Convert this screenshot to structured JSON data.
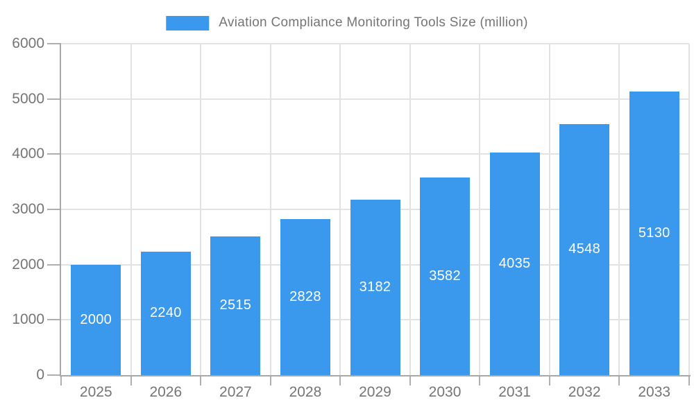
{
  "legend": {
    "label": "Aviation Compliance Monitoring Tools Size (million)"
  },
  "chart_data": {
    "type": "bar",
    "title": "Aviation Compliance Monitoring Tools Size (million)",
    "categories": [
      "2025",
      "2026",
      "2027",
      "2028",
      "2029",
      "2030",
      "2031",
      "2032",
      "2033"
    ],
    "values": [
      2000,
      2240,
      2515,
      2828,
      3182,
      3582,
      4035,
      4548,
      5130
    ],
    "xlabel": "",
    "ylabel": "",
    "ylim": [
      0,
      6000
    ],
    "ytick_step": 1000,
    "yticks": [
      0,
      1000,
      2000,
      3000,
      4000,
      5000,
      6000
    ],
    "grid": true,
    "legend_position": "top",
    "value_label_position": "inside-center",
    "colors": {
      "bar": "#3B99ED",
      "grid": "#E2E2E2",
      "tick": "#AFAFAF",
      "axis": "#A8A8A8",
      "label_text": "#757575",
      "value_text": "#FFFFFF",
      "background": "#FFFFFF"
    }
  }
}
